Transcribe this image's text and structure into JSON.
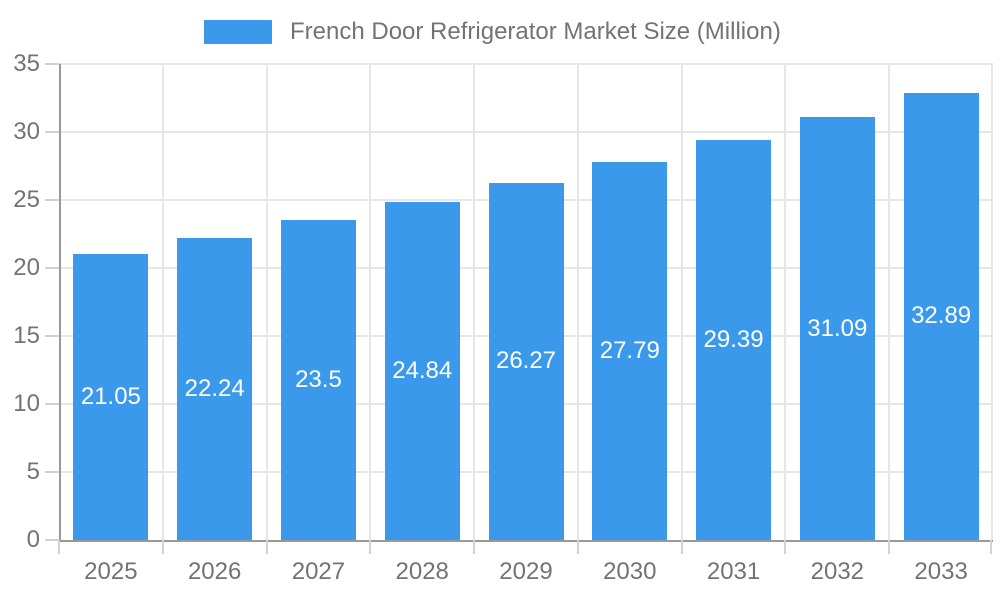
{
  "chart_data": {
    "type": "bar",
    "legend": {
      "label": "French Door Refrigerator Market Size (Million)",
      "position": "top"
    },
    "categories": [
      "2025",
      "2026",
      "2027",
      "2028",
      "2029",
      "2030",
      "2031",
      "2032",
      "2033"
    ],
    "series": [
      {
        "name": "French Door Refrigerator Market Size (Million)",
        "values": [
          21.05,
          22.24,
          23.5,
          24.84,
          26.27,
          27.79,
          29.39,
          31.09,
          32.89
        ]
      }
    ],
    "value_labels": [
      "21.05",
      "22.24",
      "23.5",
      "24.84",
      "26.27",
      "27.79",
      "29.39",
      "31.09",
      "32.89"
    ],
    "xlabel": "",
    "ylabel": "",
    "ylim": [
      0,
      35
    ],
    "yticks": [
      0,
      5,
      10,
      15,
      20,
      25,
      30,
      35
    ],
    "grid": true,
    "colors": {
      "bar": "#3b99ec",
      "value_label": "#ffffff",
      "axis_text": "#737373",
      "grid_line": "#e6e6e6",
      "axis_line": "#999999",
      "tick": "#d2d2d2",
      "background": "#ffffff"
    }
  }
}
